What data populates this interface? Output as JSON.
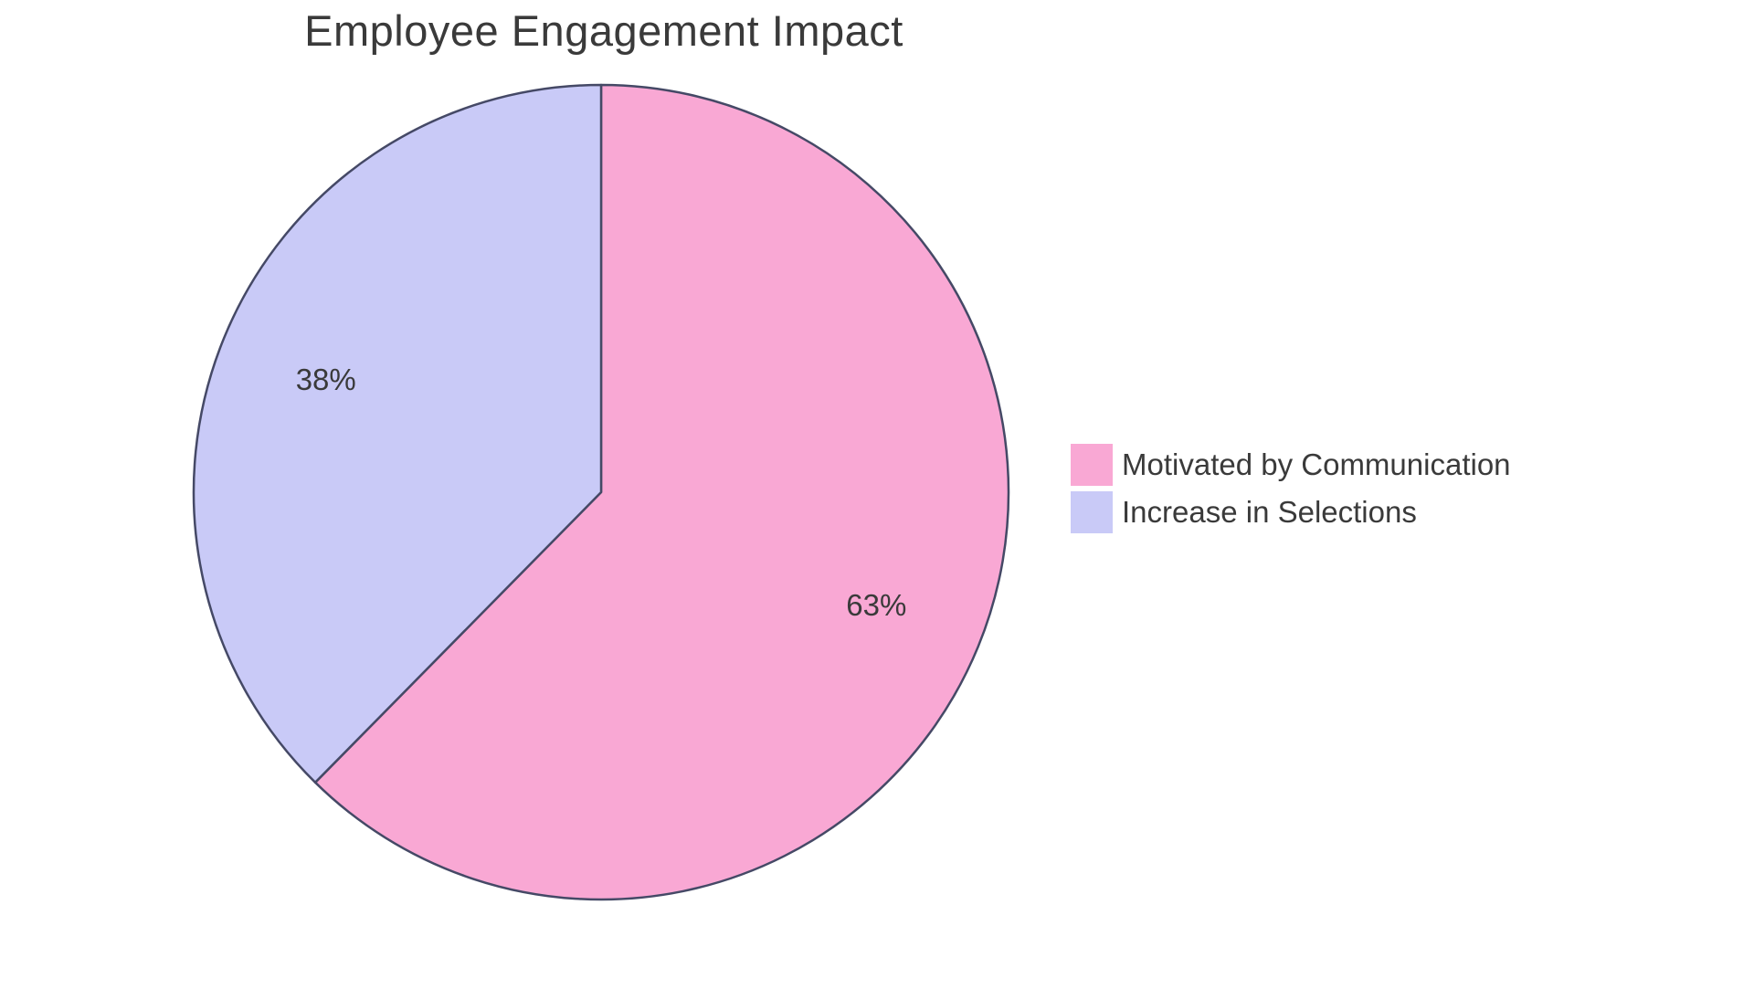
{
  "chart_data": {
    "type": "pie",
    "title": "Employee Engagement Impact",
    "categories": [
      "Motivated by Communication",
      "Increase in Selections"
    ],
    "values": [
      63,
      38
    ],
    "slice_labels": [
      "63%",
      "38%"
    ],
    "colors": [
      "#F9A8D4",
      "#C9CAF7"
    ],
    "slice_border_color": "#454966",
    "label_color": "#3A3A3A",
    "title_color": "#3A3A3A",
    "legend_position": "right",
    "start_angle_deg": 0,
    "direction": "clockwise"
  },
  "legend": {
    "items": [
      {
        "label": "Motivated by Communication",
        "color": "#F9A8D4"
      },
      {
        "label": "Increase in Selections",
        "color": "#C9CAF7"
      }
    ]
  }
}
